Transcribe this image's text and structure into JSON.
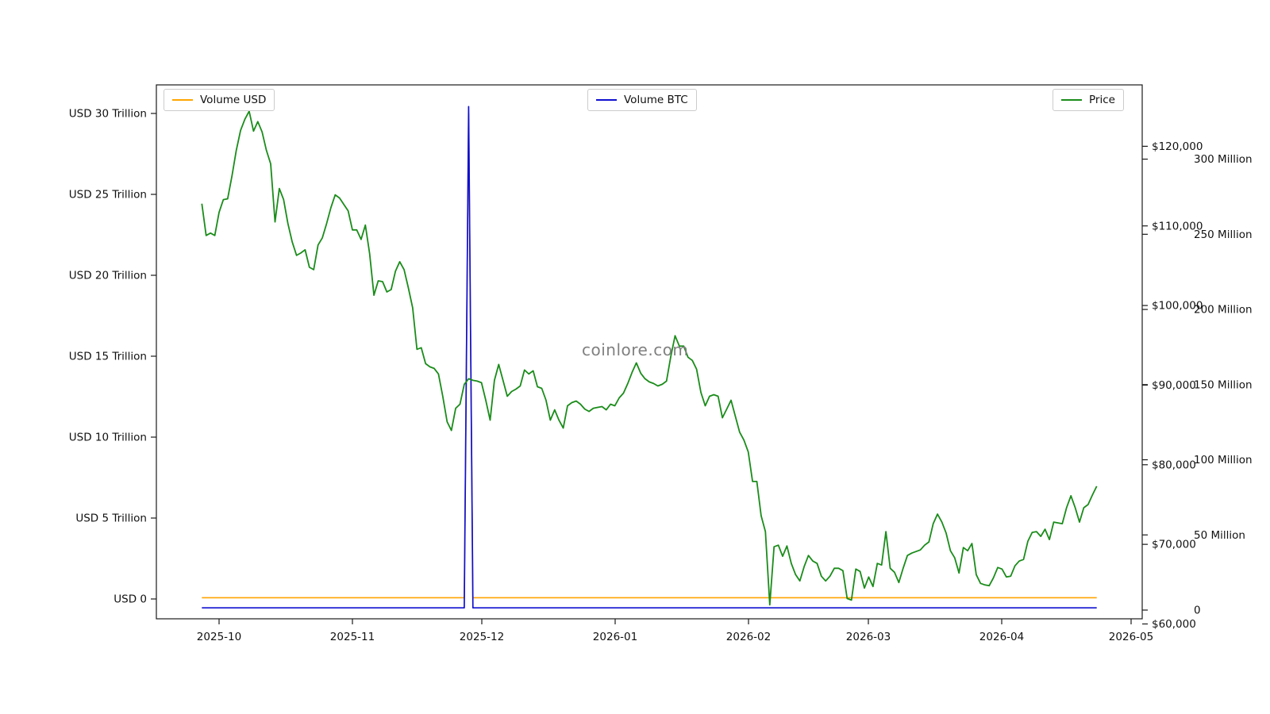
{
  "watermark": "coinlore.com",
  "legends": [
    {
      "label": "Volume USD",
      "color": "#ffa500"
    },
    {
      "label": "Volume BTC",
      "color": "#1010d0"
    },
    {
      "label": "Price",
      "color": "#1a8c1a"
    }
  ],
  "axes": {
    "x_ticks": [
      "2025-10",
      "2025-11",
      "2025-12",
      "2026-01",
      "2026-02",
      "2026-03",
      "2026-04",
      "2026-05"
    ],
    "left_ticks": [
      "USD 0",
      "USD 5 Trillion",
      "USD 10 Trillion",
      "USD 15 Trillion",
      "USD 20 Trillion",
      "USD 25 Trillion",
      "USD 30 Trillion"
    ],
    "right_price_ticks": [
      "$60,000",
      "$70,000",
      "$80,000",
      "$90,000",
      "$100,000",
      "$110,000",
      "$120,000"
    ],
    "right_million_ticks": [
      "0",
      "50 Million",
      "100 Million",
      "150 Million",
      "200 Million",
      "250 Million",
      "300 Million"
    ]
  },
  "chart_data": {
    "type": "line",
    "title": "",
    "x_axis": {
      "start_date": "2025-09-27",
      "end_date": "2026-04-23",
      "interval_days": 1
    },
    "axis_ranges": {
      "left_volume_usd_trillions": [
        0,
        30
      ],
      "right_price_usd": [
        60000,
        120000
      ],
      "right_volume_btc_millions": [
        0,
        300
      ]
    },
    "grid": false,
    "series": [
      {
        "name": "Volume USD",
        "axis": "left_trillions_usd",
        "color": "#ffa500",
        "baseline_trillions": 0.08,
        "spike": {
          "date": "2025-11-28",
          "value_trillions": 30.0
        }
      },
      {
        "name": "Volume BTC",
        "axis": "right_millions_btc",
        "color": "#1010d0",
        "baseline_millions": 1.5,
        "spike": {
          "date": "2025-11-28",
          "value_millions": 335
        }
      },
      {
        "name": "Price",
        "axis": "right_usd",
        "color": "#1a8c1a",
        "unit": "USD",
        "values": [
          112800,
          108800,
          109100,
          108800,
          111700,
          113300,
          113400,
          116300,
          119500,
          122000,
          123400,
          124400,
          121900,
          123100,
          121800,
          119500,
          117800,
          110500,
          114700,
          113300,
          110300,
          108000,
          106300,
          106600,
          107000,
          104800,
          104500,
          107600,
          108500,
          110300,
          112300,
          113900,
          113500,
          112700,
          111900,
          109500,
          109500,
          108300,
          110100,
          106500,
          101300,
          103100,
          103000,
          101700,
          102000,
          104300,
          105500,
          104500,
          102200,
          99700,
          94500,
          94700,
          92700,
          92300,
          92100,
          91400,
          88600,
          85400,
          84300,
          87100,
          87600,
          90100,
          90800,
          90600,
          90500,
          90300,
          88100,
          85600,
          90600,
          92600,
          90600,
          88600,
          89200,
          89500,
          89900,
          91900,
          91400,
          91800,
          89800,
          89600,
          88100,
          85600,
          86900,
          85600,
          84600,
          87400,
          87800,
          88000,
          87600,
          87000,
          86700,
          87100,
          87200,
          87300,
          86900,
          87600,
          87400,
          88400,
          89000,
          90200,
          91600,
          92800,
          91500,
          90800,
          90400,
          90200,
          89900,
          90100,
          90500,
          93600,
          96200,
          94900,
          94900,
          93500,
          93100,
          92000,
          89100,
          87400,
          88600,
          88800,
          88600,
          85900,
          87000,
          88100,
          86100,
          84100,
          83100,
          81600,
          77900,
          77900,
          73600,
          71600,
          62400,
          69700,
          69900,
          68500,
          69800,
          67600,
          66200,
          65400,
          67200,
          68600,
          67900,
          67600,
          66000,
          65400,
          66000,
          67000,
          67000,
          66700,
          63200,
          63000,
          66900,
          66600,
          64500,
          65900,
          64700,
          67600,
          67400,
          71600,
          67000,
          66500,
          65200,
          67000,
          68600,
          68900,
          69100,
          69300,
          69900,
          70300,
          72600,
          73800,
          72800,
          71400,
          69200,
          68300,
          66400,
          69600,
          69200,
          70100,
          66200,
          65100,
          64900,
          64800,
          65800,
          67100,
          66900,
          65900,
          66000,
          67300,
          67900,
          68100,
          70400,
          71500,
          71600,
          71000,
          71900,
          70600,
          72800,
          72700,
          72600,
          74600,
          76100,
          74600,
          72800,
          74600,
          75000,
          76200,
          77300
        ]
      }
    ]
  }
}
